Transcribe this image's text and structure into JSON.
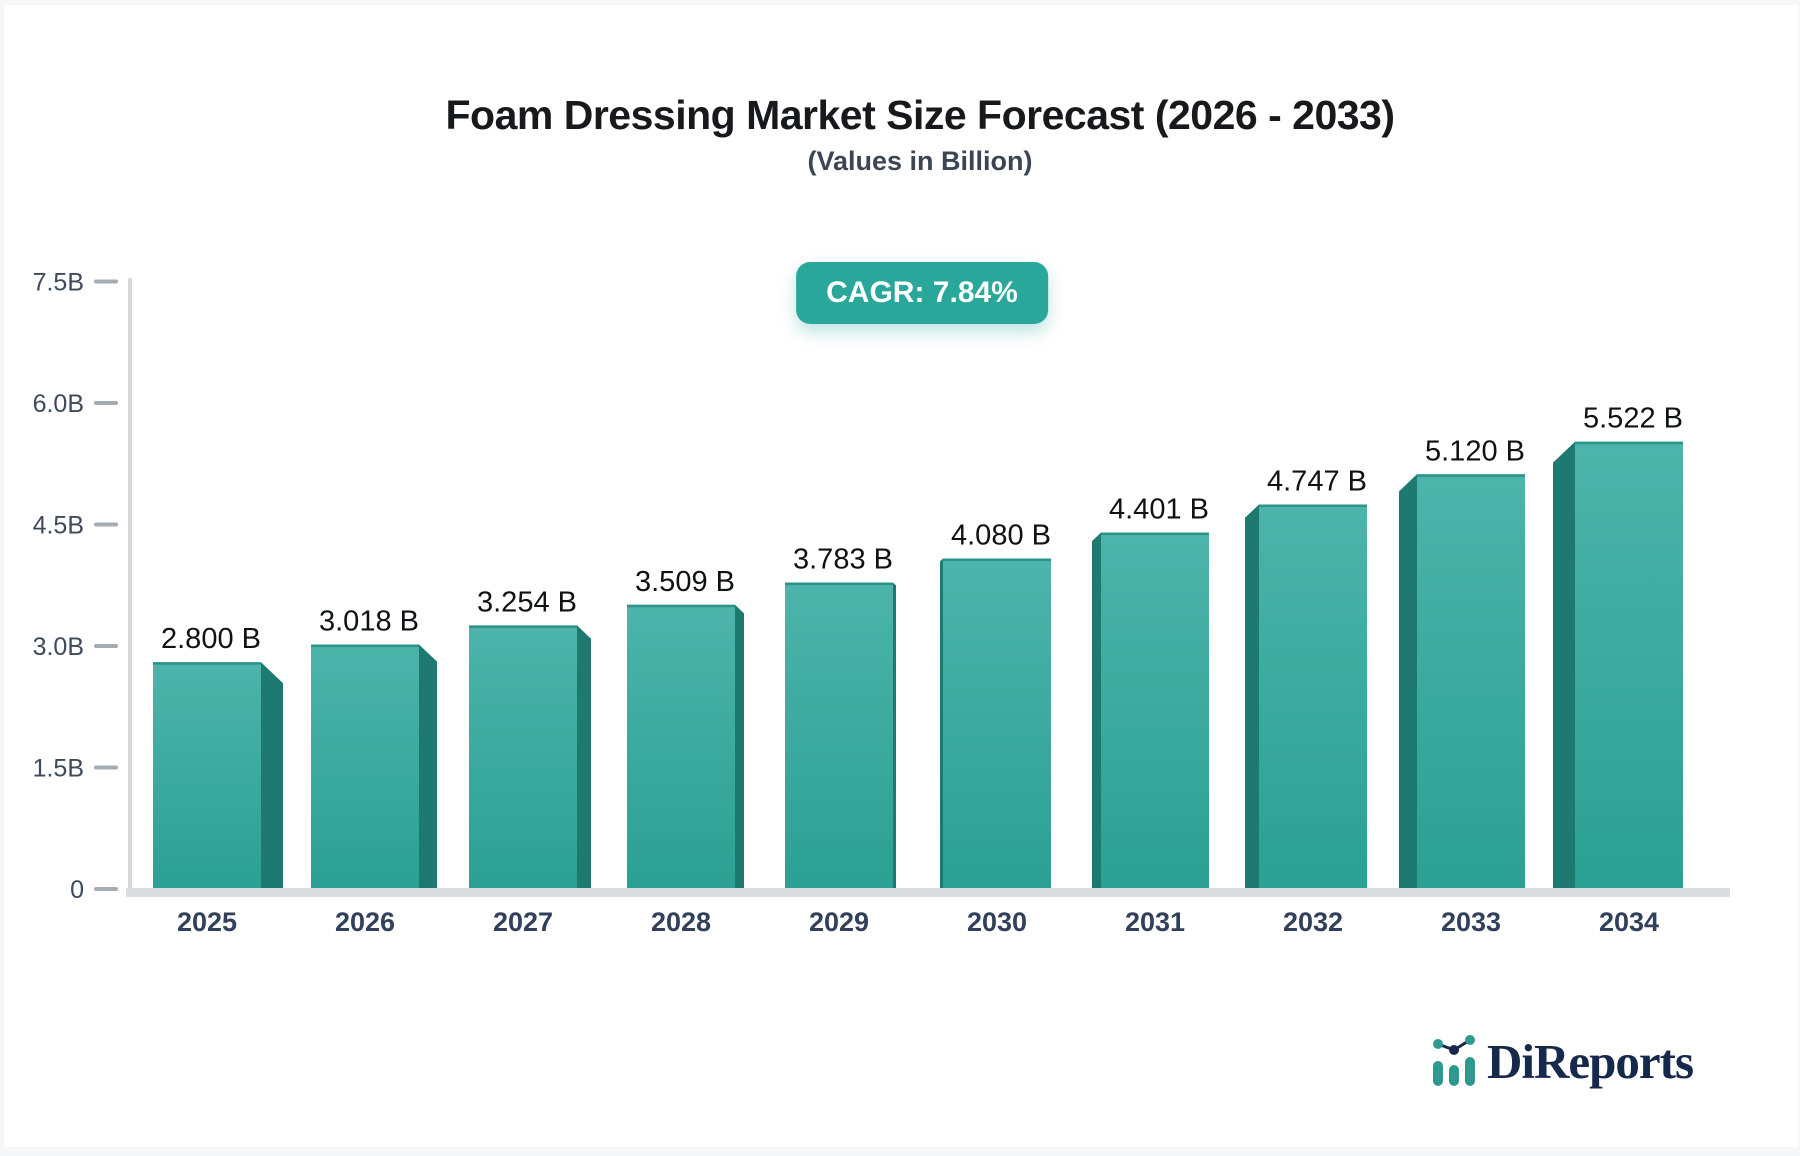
{
  "header": {
    "title": "Foam Dressing Market Size Forecast (2026 - 2033)",
    "subtitle": "(Values in Billion)",
    "cagr_badge": "CAGR: 7.84%"
  },
  "chart_data": {
    "type": "bar",
    "title": "Foam Dressing Market Size Forecast (2026 - 2033)",
    "subtitle": "(Values in Billion)",
    "cagr": "7.84%",
    "categories": [
      "2025",
      "2026",
      "2027",
      "2028",
      "2029",
      "2030",
      "2031",
      "2032",
      "2033",
      "2034"
    ],
    "values": [
      2.8,
      3.018,
      3.254,
      3.509,
      3.783,
      4.08,
      4.401,
      4.747,
      5.12,
      5.522
    ],
    "value_labels": [
      "2.800 B",
      "3.018 B",
      "3.254 B",
      "3.509 B",
      "3.783 B",
      "4.080 B",
      "4.401 B",
      "4.747 B",
      "5.120 B",
      "5.522 B"
    ],
    "xlabel": "",
    "ylabel": "",
    "ylim": [
      0,
      7.5
    ],
    "grid": false,
    "legend": "none",
    "y_ticks": {
      "values": [
        0,
        1.5,
        3.0,
        4.5,
        6.0,
        7.5
      ],
      "labels": [
        "0",
        "1.5B",
        "3.0B",
        "4.5B",
        "6.0B",
        "7.5B"
      ]
    },
    "bar_style": {
      "face_top": "#4db4aa",
      "face_bottom": "#2ba093",
      "side": "#1e7a71",
      "top_edge": "#2a9489",
      "style": "3d-extruded, perspective vanishing point at chart center"
    }
  },
  "logo": {
    "text": "DiReports",
    "icon": "mini-bar-chart-icon",
    "accent_color": "#2d9a90",
    "text_color": "#16294b"
  },
  "colors": {
    "accent": "#2aa79b",
    "badge_text": "#ffffff",
    "background": "#f6f7f9",
    "card": "#ffffff",
    "axis_line": "#d6d8dc",
    "baseline": "#d9dbdf",
    "tick": "#a6acb4",
    "y_label": "#3e4a59",
    "x_label": "#32415b",
    "value_label": "#0f1115",
    "title": "#17191d",
    "subtitle": "#3d4554"
  }
}
